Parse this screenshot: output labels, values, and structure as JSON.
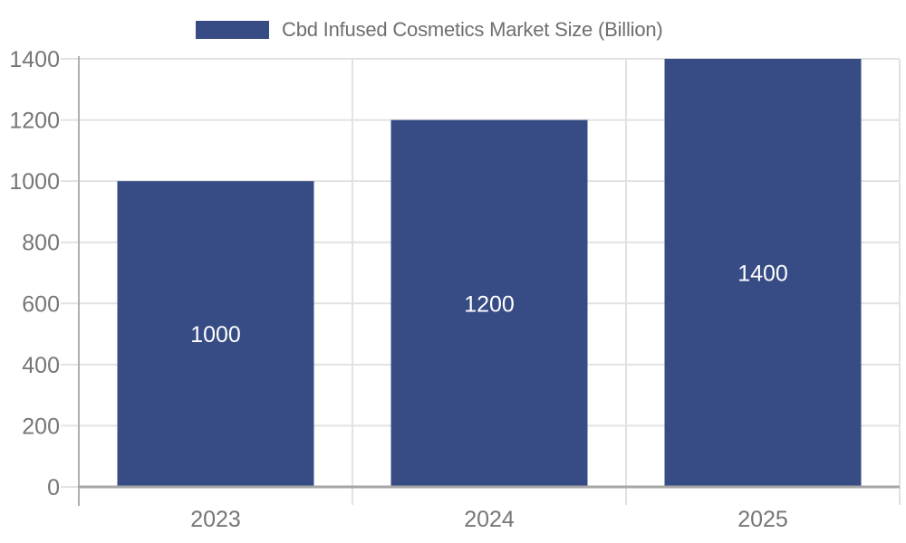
{
  "chart_data": {
    "type": "bar",
    "title": "Cbd Infused Cosmetics Market Size (Billion)",
    "categories": [
      "2023",
      "2024",
      "2025"
    ],
    "values": [
      1000,
      1200,
      1400
    ],
    "series": [
      {
        "name": "Cbd Infused Cosmetics Market Size (Billion)",
        "values": [
          1000,
          1200,
          1400
        ]
      }
    ],
    "bar_value_labels": [
      "1000",
      "1200",
      "1400"
    ],
    "xlabel": "",
    "ylabel": "",
    "ylim": [
      0,
      1400
    ],
    "ytick_step": 200,
    "yticks": [
      0,
      200,
      400,
      600,
      800,
      1000,
      1200,
      1400
    ],
    "grid": true,
    "legend_position": "top-center",
    "colors": {
      "bar": "#374B85",
      "bar_label": "#FFFFFF",
      "axis_text": "#767676",
      "legend_text": "#6F6F6F",
      "gridline": "#E2E2E2",
      "axis_line": "#A6A6A6",
      "background": "#FFFFFF"
    }
  }
}
